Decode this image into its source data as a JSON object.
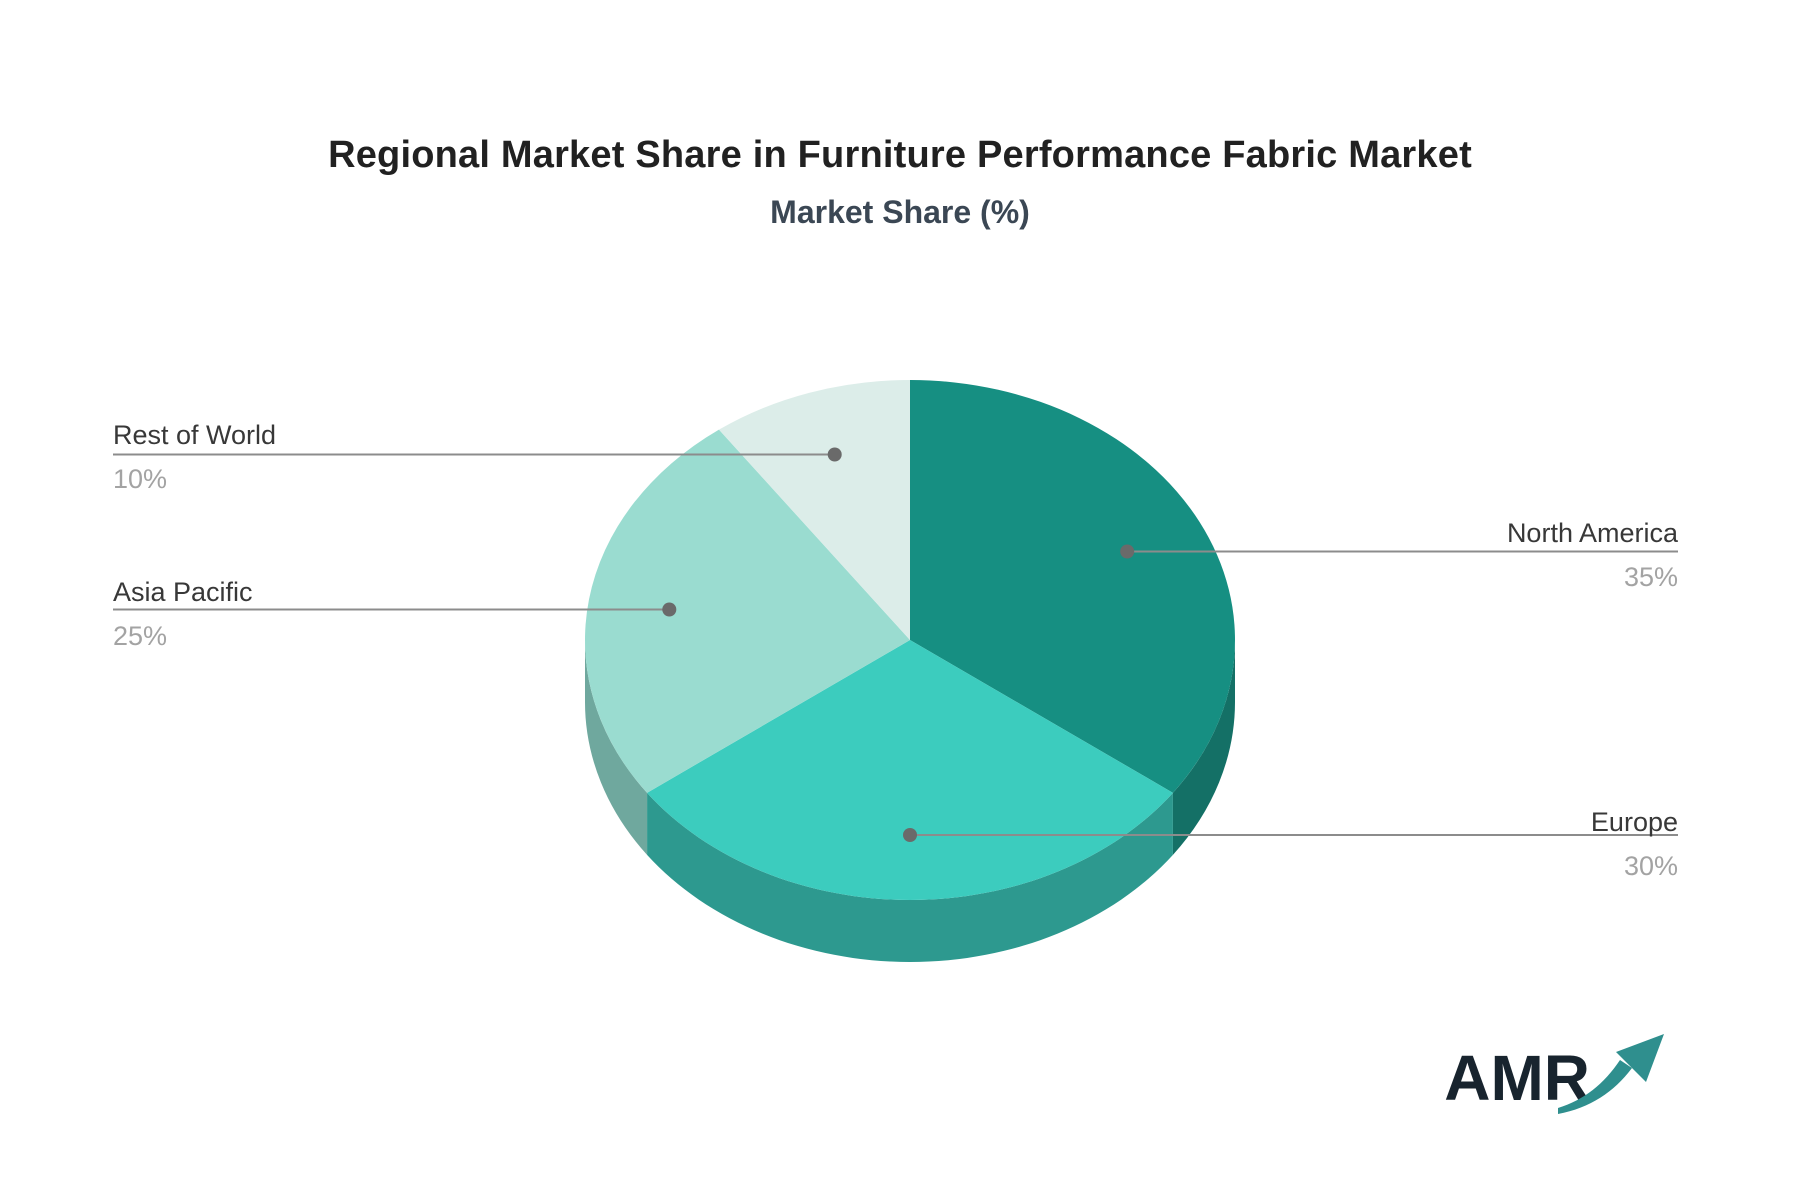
{
  "title": "Regional Market Share in Furniture Performance Fabric Market",
  "subtitle": "Market Share (%)",
  "chart_data": {
    "type": "pie",
    "style": "3d",
    "title": "Regional Market Share in Furniture Performance Fabric Market",
    "subtitle": "Market Share (%)",
    "start_angle": "12-oclock-clockwise",
    "legend_position": "callout-labels",
    "background": "#FFFFFF",
    "slices": [
      {
        "label": "North America",
        "value": 35,
        "value_label": "35%",
        "color": "#168F82",
        "side_color": "#147066",
        "callout_side": "right"
      },
      {
        "label": "Europe",
        "value": 30,
        "value_label": "30%",
        "color": "#3CCCBE",
        "side_color": "#2D998F",
        "callout_side": "right"
      },
      {
        "label": "Asia Pacific",
        "value": 25,
        "value_label": "25%",
        "color": "#9ADCD0",
        "side_color": "#6FA89E",
        "callout_side": "left"
      },
      {
        "label": "Rest of World",
        "value": 10,
        "value_label": "10%",
        "color": "#DCEDE9",
        "callout_side": "left"
      }
    ]
  },
  "callout": {
    "line_color": "#8C8C8C",
    "dot_color": "#6A6A6A",
    "label_color": "#383838",
    "value_color": "#A3A3A3",
    "subtitle_color": "#3B4754"
  },
  "logo": {
    "text": "AMR",
    "text_color": "#18242E",
    "arrow_color": "#2F8F8E",
    "arrow_icon": "trending-up-arrow"
  }
}
